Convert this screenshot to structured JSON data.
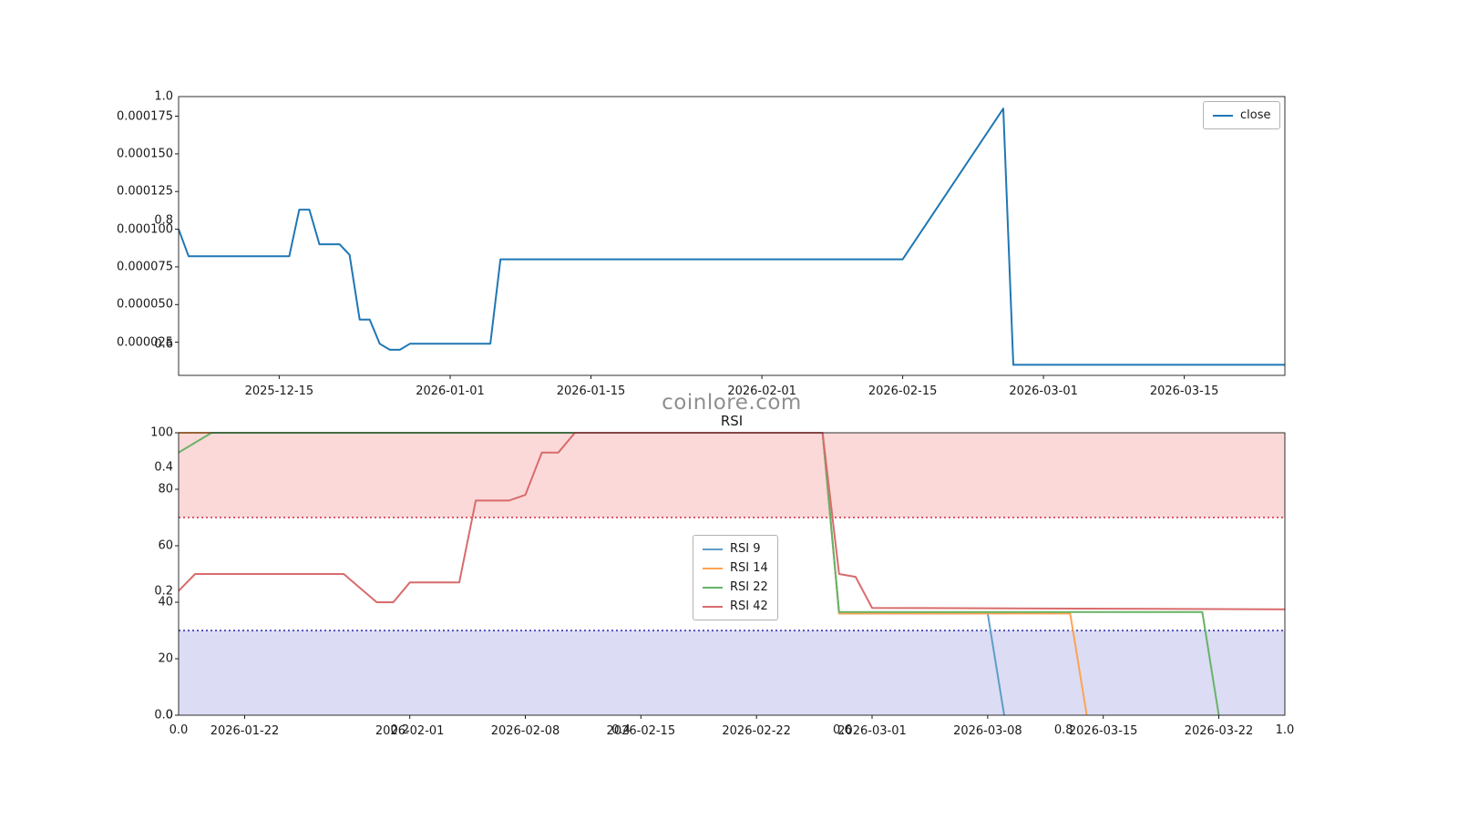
{
  "watermark": "coinlore.com",
  "ghost_axis": {
    "y_labels": [
      "1.0",
      "0.8",
      "0.6",
      "0.4",
      "0.2",
      "0.0"
    ],
    "x_labels": [
      "0.0",
      "0.2",
      "0.4",
      "0.6",
      "0.8",
      "1.0"
    ]
  },
  "chart_data": [
    {
      "type": "line",
      "title": "",
      "legend_position": "upper right",
      "x_range": [
        "2025-12-05",
        "2026-03-25"
      ],
      "y_range": [
        3e-06,
        0.000188
      ],
      "x_ticks": [
        "2025-12-15",
        "2026-01-01",
        "2026-01-15",
        "2026-02-01",
        "2026-02-15",
        "2026-03-01",
        "2026-03-15"
      ],
      "y_ticks": [
        {
          "v": 0.000175,
          "label": "0.000175"
        },
        {
          "v": 0.00015,
          "label": "0.000150"
        },
        {
          "v": 0.000125,
          "label": "0.000125"
        },
        {
          "v": 0.0001,
          "label": "0.000100"
        },
        {
          "v": 7.5e-05,
          "label": "0.000075"
        },
        {
          "v": 5e-05,
          "label": "0.000050"
        },
        {
          "v": 2.5e-05,
          "label": "0.000025"
        }
      ],
      "series": [
        {
          "name": "close",
          "color": "#1f77b4",
          "points": [
            [
              "2025-12-05",
              0.0001
            ],
            [
              "2025-12-06",
              8.2e-05
            ],
            [
              "2025-12-16",
              8.2e-05
            ],
            [
              "2025-12-17",
              0.000113
            ],
            [
              "2025-12-18",
              0.000113
            ],
            [
              "2025-12-19",
              9e-05
            ],
            [
              "2025-12-21",
              9e-05
            ],
            [
              "2025-12-22",
              8.3e-05
            ],
            [
              "2025-12-23",
              4e-05
            ],
            [
              "2025-12-24",
              4e-05
            ],
            [
              "2025-12-25",
              2.4e-05
            ],
            [
              "2025-12-26",
              2e-05
            ],
            [
              "2025-12-27",
              2e-05
            ],
            [
              "2025-12-28",
              2.4e-05
            ],
            [
              "2026-01-05",
              2.4e-05
            ],
            [
              "2026-01-06",
              8e-05
            ],
            [
              "2026-02-15",
              8e-05
            ],
            [
              "2026-02-25",
              0.00018
            ],
            [
              "2026-02-26",
              1e-05
            ],
            [
              "2026-03-25",
              1e-05
            ]
          ]
        }
      ]
    },
    {
      "type": "line",
      "title": "RSI",
      "legend_position": "center",
      "x_range": [
        "2026-01-18",
        "2026-03-26"
      ],
      "y_range": [
        0,
        100
      ],
      "x_ticks": [
        "2026-01-22",
        "2026-02-01",
        "2026-02-08",
        "2026-02-15",
        "2026-02-22",
        "2026-03-01",
        "2026-03-08",
        "2026-03-15",
        "2026-03-22"
      ],
      "y_ticks": [
        {
          "v": 100,
          "label": "100"
        },
        {
          "v": 80,
          "label": "80"
        },
        {
          "v": 60,
          "label": "60"
        },
        {
          "v": 40,
          "label": "40"
        },
        {
          "v": 20,
          "label": "20"
        },
        {
          "v": 0,
          "label": "0"
        }
      ],
      "bands": [
        {
          "from": 70,
          "to": 100,
          "color": "#fbd9d9",
          "meaning": "overbought zone"
        },
        {
          "from": 0,
          "to": 30,
          "color": "#dcdcf4",
          "meaning": "oversold zone"
        }
      ],
      "hlines": [
        {
          "v": 70,
          "color": "#d62740"
        },
        {
          "v": 30,
          "color": "#2323b0"
        }
      ],
      "series": [
        {
          "name": "RSI 9",
          "color": "#5e9dc9",
          "points": [
            [
              "2026-01-18",
              100
            ],
            [
              "2026-02-26",
              100
            ],
            [
              "2026-02-27",
              36
            ],
            [
              "2026-03-08",
              36
            ],
            [
              "2026-03-09",
              0
            ]
          ]
        },
        {
          "name": "RSI 14",
          "color": "#ffa351",
          "points": [
            [
              "2026-01-18",
              100
            ],
            [
              "2026-02-26",
              100
            ],
            [
              "2026-02-27",
              36
            ],
            [
              "2026-03-13",
              36
            ],
            [
              "2026-03-14",
              0
            ]
          ]
        },
        {
          "name": "RSI 22",
          "color": "#67b367",
          "points": [
            [
              "2026-01-18",
              93
            ],
            [
              "2026-01-20",
              100
            ],
            [
              "2026-02-26",
              100
            ],
            [
              "2026-02-27",
              36.5
            ],
            [
              "2026-03-21",
              36.5
            ],
            [
              "2026-03-22",
              0
            ]
          ]
        },
        {
          "name": "RSI 42",
          "color": "#d96b6c",
          "points": [
            [
              "2026-01-18",
              44
            ],
            [
              "2026-01-19",
              50
            ],
            [
              "2026-01-28",
              50
            ],
            [
              "2026-01-30",
              40
            ],
            [
              "2026-01-31",
              40
            ],
            [
              "2026-02-01",
              47
            ],
            [
              "2026-02-04",
              47
            ],
            [
              "2026-02-05",
              76
            ],
            [
              "2026-02-07",
              76
            ],
            [
              "2026-02-08",
              78
            ],
            [
              "2026-02-09",
              93
            ],
            [
              "2026-02-10",
              93
            ],
            [
              "2026-02-11",
              100
            ],
            [
              "2026-02-26",
              100
            ],
            [
              "2026-02-27",
              50
            ],
            [
              "2026-02-28",
              49
            ],
            [
              "2026-03-01",
              38
            ],
            [
              "2026-03-26",
              37.5
            ]
          ]
        }
      ]
    }
  ]
}
